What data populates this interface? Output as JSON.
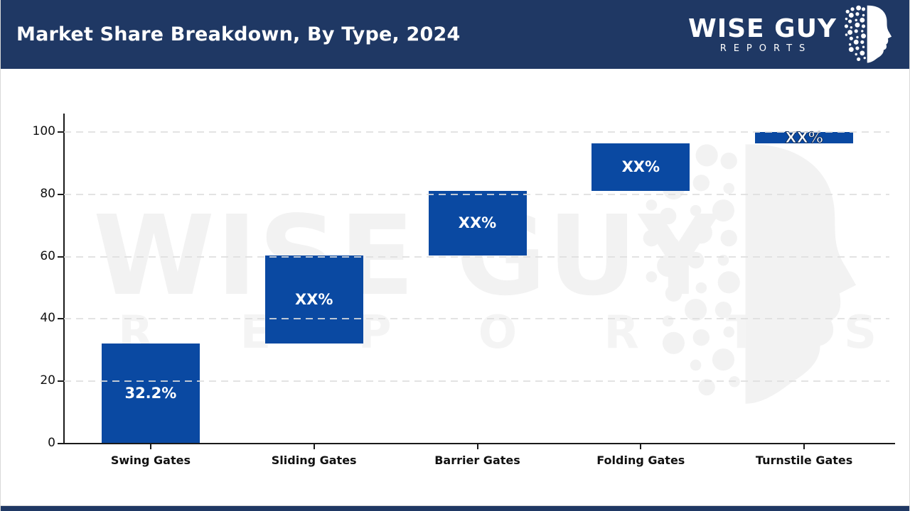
{
  "header": {
    "title": "Market Share Breakdown, By Type, 2024",
    "logo": {
      "primary": "WISE GUY",
      "secondary": "REPORTS"
    }
  },
  "chart_data": {
    "type": "bar",
    "subtype": "waterfall",
    "title": "Market Share Breakdown, By Type, 2024",
    "categories": [
      "Swing Gates",
      "Sliding Gates",
      "Barrier Gates",
      "Folding Gates",
      "Turnstile Gates"
    ],
    "segments": [
      {
        "category": "Swing Gates",
        "start": 0,
        "end": 32.2,
        "label": "32.2%"
      },
      {
        "category": "Sliding Gates",
        "start": 32.2,
        "end": 60.3,
        "label": "XX%"
      },
      {
        "category": "Barrier Gates",
        "start": 60.3,
        "end": 81.2,
        "label": "XX%"
      },
      {
        "category": "Folding Gates",
        "start": 81.2,
        "end": 96.3,
        "label": "XX%"
      },
      {
        "category": "Turnstile Gates",
        "start": 96.3,
        "end": 100,
        "label": "XX%"
      }
    ],
    "y_ticks": [
      0,
      20,
      40,
      60,
      80,
      100
    ],
    "ylim": [
      0,
      105
    ],
    "xlabel": "",
    "ylabel": "",
    "grid": "horizontal-dashed",
    "legend": null,
    "bar_color": "#0a49a2",
    "bar_label_color": "#ffffff"
  },
  "watermark": {
    "primary": "WISE GUY",
    "secondary": "R E P O R T S"
  },
  "colors": {
    "header_bg": "#1f3864",
    "footer_bg": "#1f3864",
    "bar": "#0a49a2",
    "axis": "#1a1a1a",
    "grid": "#dedede",
    "watermark": "#f2f2f2"
  }
}
